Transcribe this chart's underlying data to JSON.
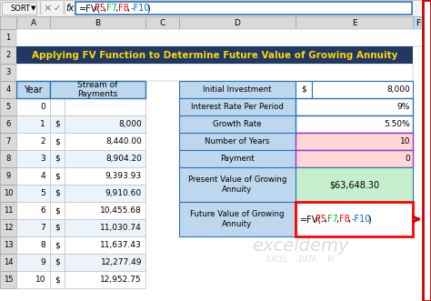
{
  "title": "Applying FV Function to Determine Future Value of Growing Annuity",
  "title_bg": "#1F3864",
  "title_color": "#FFD700",
  "formula_bar_text": "=FV(F5,F7,F8,-F10)",
  "col_names": [
    "A",
    "B",
    "C",
    "D",
    "E",
    "F"
  ],
  "left_table_header_bg": "#BDD7EE",
  "left_table_border": "#2E75B6",
  "years": [
    0,
    1,
    2,
    3,
    4,
    5,
    6,
    7,
    8,
    9,
    10
  ],
  "payments": [
    "",
    "8,000",
    "8,440.00",
    "8,904.20",
    "9,393.93",
    "9,910.60",
    "10,455.68",
    "11,030.74",
    "11,637.43",
    "12,277.49",
    "12,952.75"
  ],
  "right_labels": [
    "Initial Investment",
    "Interest Rate Per Period",
    "Growth Rate",
    "Number of Years",
    "Payment"
  ],
  "right_has_dollar": [
    true,
    false,
    false,
    false,
    false
  ],
  "right_values": [
    "8,000",
    "9%",
    "5.50%",
    "10",
    "0"
  ],
  "right_val_bg": [
    "#FFFFFF",
    "#FFFFFF",
    "#FFFFFF",
    "#FFD7D7",
    "#FFD7D7"
  ],
  "right_val_border": [
    "#2E75B6",
    "#2E75B6",
    "#2E75B6",
    "#9933CC",
    "#9933CC"
  ],
  "pv_label": "Present Value of Growing\nAnnuity",
  "pv_value": "$63,648.30",
  "pv_bg": "#C6EFCE",
  "pv_border": "#2E75B6",
  "fv_label": "Future Value of Growing\nAnnuity",
  "fv_bg": "#FFFFFF",
  "fv_border": "#FF0000",
  "excel_bg": "#FFFFFF",
  "header_row_bg": "#D9D9D9",
  "col_header_highlight_bg": "#BDD7EE",
  "watermark_color": "#BBBBBB",
  "red_arrow_color": "#CC0000",
  "fv_formula_parts": [
    [
      "=FV(",
      "#000000"
    ],
    [
      "F5",
      "#FF0000"
    ],
    [
      ",",
      "#000000"
    ],
    [
      "F7",
      "#00AA44"
    ],
    [
      ",",
      "#000000"
    ],
    [
      "F8",
      "#FF0000"
    ],
    [
      ",",
      "#000000"
    ],
    [
      "-F10",
      "#0070C0"
    ],
    [
      ")",
      "#000000"
    ]
  ]
}
